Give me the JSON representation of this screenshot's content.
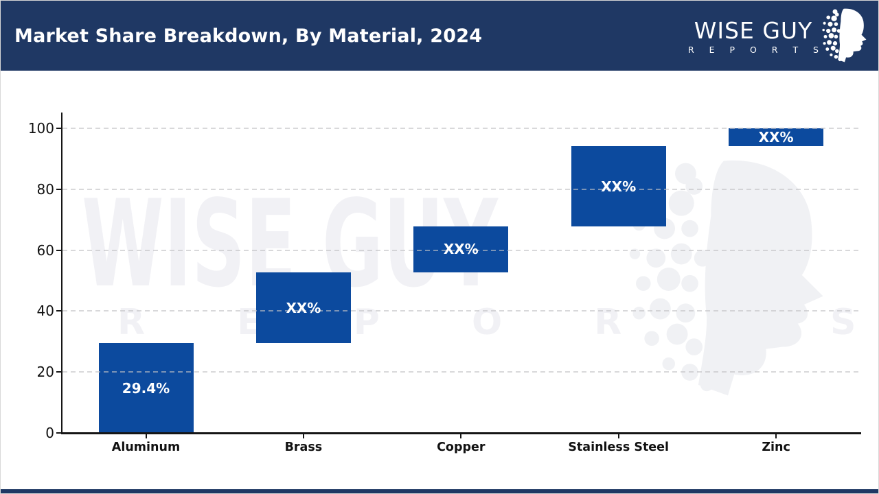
{
  "header": {
    "title": "Market Share Breakdown, By Material, 2024",
    "logo": {
      "line1": "WISE GUY",
      "line2": "R E P O R T S"
    }
  },
  "watermark": {
    "line1": "WISE GUY",
    "line2": "R E P O R T S"
  },
  "chart_data": {
    "type": "bar",
    "subtype": "floating-waterfall-segments",
    "title": "Market Share Breakdown, By Material, 2024",
    "categories": [
      "Aluminum",
      "Brass",
      "Copper",
      "Stainless Steel",
      "Zinc"
    ],
    "segments": [
      {
        "category": "Aluminum",
        "start": 0,
        "end": 29.4,
        "value": 29.4,
        "label": "29.4%"
      },
      {
        "category": "Brass",
        "start": 29.4,
        "end": 52.8,
        "value": 23.4,
        "label": "XX%"
      },
      {
        "category": "Copper",
        "start": 52.8,
        "end": 67.7,
        "value": 14.9,
        "label": "XX%"
      },
      {
        "category": "Stainless Steel",
        "start": 67.7,
        "end": 94.2,
        "value": 26.5,
        "label": "XX%"
      },
      {
        "category": "Zinc",
        "start": 94.2,
        "end": 100,
        "value": 5.8,
        "label": "XX%"
      }
    ],
    "xlabel": "",
    "ylabel": "",
    "y_ticks": [
      0,
      20,
      40,
      60,
      80,
      100
    ],
    "ylim": [
      0,
      105
    ],
    "grid": "horizontal dashed lines drawn above bars",
    "legend": "none",
    "bar_color": "#0c4a9e",
    "bar_label_color": "#ffffff"
  },
  "colors": {
    "header_bg": "#1f3864",
    "footer_bg": "#1f3864",
    "bar": "#0c4a9e",
    "axis": "#151515",
    "tick_label": "#111111",
    "grid_dash": "#c1c1c4",
    "watermark": "#f1f1f5"
  }
}
